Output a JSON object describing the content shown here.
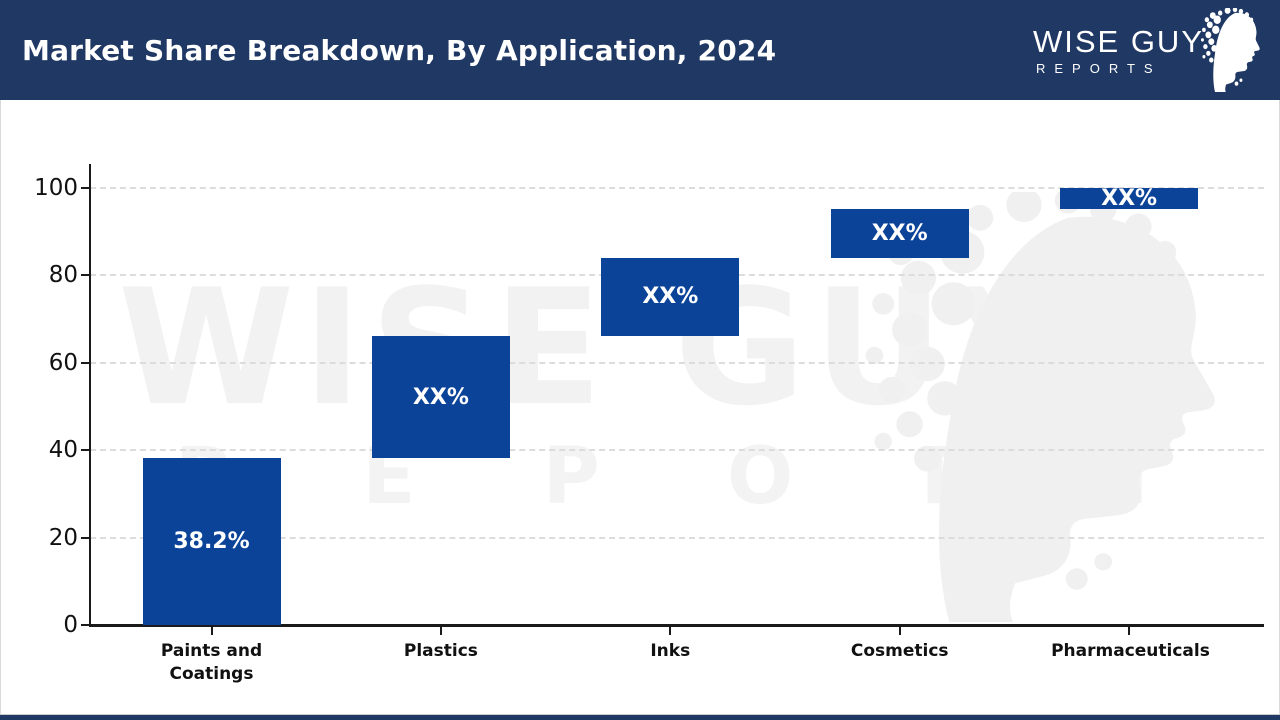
{
  "header": {
    "title": "Market Share Breakdown, By Application, 2024",
    "logo": {
      "line1": "WISE GUY",
      "line2": "REPORTS"
    }
  },
  "watermark": {
    "line1": "WISE GUY",
    "line2": "R E P O R T S"
  },
  "colors": {
    "header_bg": "#1f3864",
    "bar": "#0b4399",
    "grid": "#dcdcdc",
    "axis": "#1a1a1a",
    "watermark": "#f2f2f2"
  },
  "chart_data": {
    "type": "bar",
    "subtype": "waterfall-floating-bars",
    "title": "Market Share Breakdown, By Application, 2024",
    "categories": [
      "Paints and Coatings",
      "Plastics",
      "Inks",
      "Cosmetics",
      "Pharmaceuticals"
    ],
    "segments": [
      {
        "category": "Paints and Coatings",
        "start": 0,
        "end": 38.2,
        "label": "38.2%"
      },
      {
        "category": "Plastics",
        "start": 38.2,
        "end": 66,
        "label": "XX%"
      },
      {
        "category": "Inks",
        "start": 66,
        "end": 84,
        "label": "XX%"
      },
      {
        "category": "Cosmetics",
        "start": 84,
        "end": 95,
        "label": "XX%"
      },
      {
        "category": "Pharmaceuticals",
        "start": 95,
        "end": 100,
        "label": "XX%"
      }
    ],
    "y_ticks": [
      0,
      20,
      40,
      60,
      80,
      100
    ],
    "ylim": [
      0,
      105
    ],
    "xlabel": "",
    "ylabel": "",
    "grid": "horizontal-dashed",
    "legend": "none",
    "bar_color": "#0b4399"
  }
}
